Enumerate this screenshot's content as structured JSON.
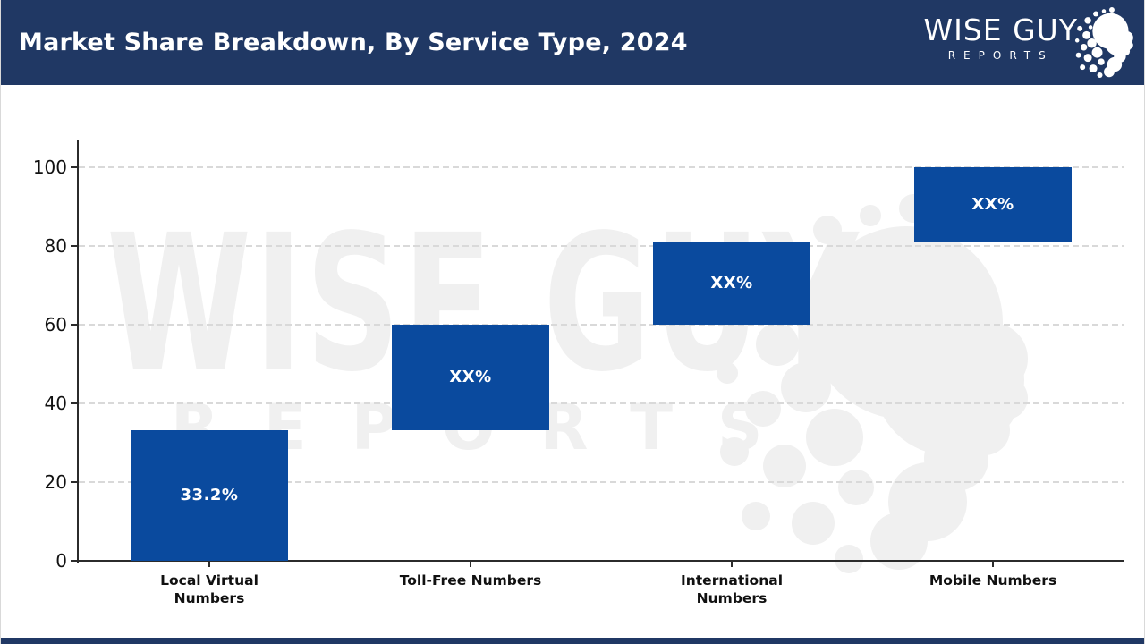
{
  "header": {
    "title": "Market Share Breakdown, By Service Type, 2024",
    "logo": {
      "line1": "WISE GUY",
      "line2": "REPORTS"
    }
  },
  "watermark": {
    "line1": "WISE GUY",
    "line2": "REPORTS"
  },
  "chart_data": {
    "type": "bar",
    "subtype": "floating-waterfall",
    "title": "Market Share Breakdown, By Service Type, 2024",
    "categories": [
      "Local Virtual Numbers",
      "Toll-Free Numbers",
      "International Numbers",
      "Mobile Numbers"
    ],
    "categories_lines": [
      [
        "Local Virtual",
        "Numbers"
      ],
      [
        "Toll-Free Numbers"
      ],
      [
        "International",
        "Numbers"
      ],
      [
        "Mobile Numbers"
      ]
    ],
    "segments": [
      {
        "category": "Local Virtual Numbers",
        "start": 0,
        "end": 33.2,
        "label": "33.2%"
      },
      {
        "category": "Toll-Free Numbers",
        "start": 33.2,
        "end": 60,
        "label": "XX%"
      },
      {
        "category": "International Numbers",
        "start": 60,
        "end": 81,
        "label": "XX%"
      },
      {
        "category": "Mobile Numbers",
        "start": 81,
        "end": 100,
        "label": "XX%"
      }
    ],
    "y_ticks": [
      0,
      20,
      40,
      60,
      80,
      100
    ],
    "ylim": [
      0,
      107
    ],
    "xlabel": "",
    "ylabel": "",
    "grid": "dashed-horizontal",
    "legend": "none",
    "bar_color": "#0a4a9e",
    "bar_label_color": "#ffffff",
    "axis_color": "#2b2b2b",
    "grid_color": "#d9d9d9"
  },
  "colors": {
    "header_bg": "#203864",
    "footer_bg": "#203864",
    "chart_bg": "#ffffff",
    "watermark": "#f0f0f0",
    "text": "#111111"
  }
}
